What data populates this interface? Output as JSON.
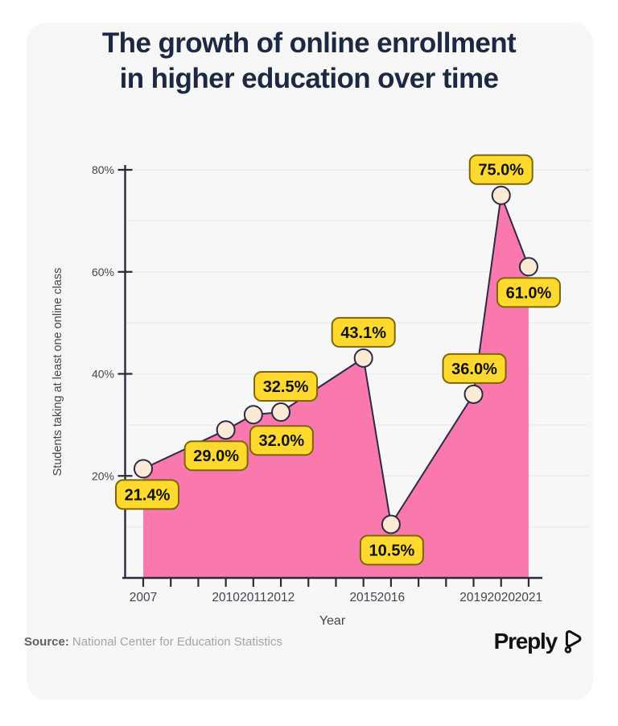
{
  "title": {
    "line1": "The growth of online enrollment",
    "line2": "in higher education over time"
  },
  "chart_data": {
    "type": "area",
    "x": [
      2007,
      2010,
      2011,
      2012,
      2015,
      2016,
      2019,
      2020,
      2021
    ],
    "values": [
      21.4,
      29.0,
      32.0,
      32.5,
      43.1,
      10.5,
      36.0,
      75.0,
      61.0
    ],
    "point_labels": [
      "21.4%",
      "29.0%",
      "32.0%",
      "32.5%",
      "43.1%",
      "10.5%",
      "36.0%",
      "75.0%",
      "61.0%"
    ],
    "label_side": [
      "below",
      "below",
      "below",
      "above",
      "above",
      "below",
      "above",
      "above",
      "below"
    ],
    "label_dx": [
      5,
      -12,
      35,
      6,
      0,
      1,
      1,
      0,
      0
    ],
    "xlabel": "Year",
    "ylabel": "Students taking at least one online class",
    "x_range": [
      2007,
      2021
    ],
    "ylim": [
      0,
      80
    ],
    "ytick_values": [
      20,
      40,
      60,
      80
    ],
    "ytick_suffix": "%",
    "grid_step": 10,
    "grid_on": true,
    "legend": "none",
    "colors": {
      "area_fill": "#f978ae",
      "line": "#2e2a44",
      "marker_fill": "#fbead6",
      "marker_stroke": "#2e2a44",
      "label_bg": "#ffd92e",
      "label_border": "#7d6608",
      "label_text": "#111111",
      "axis": "#2b2a3a",
      "grid": "#ececec",
      "tick_text": "#45444e"
    }
  },
  "footer": {
    "source_label": "Source:",
    "source_text": "National Center for Education Statistics",
    "brand": "Preply"
  }
}
